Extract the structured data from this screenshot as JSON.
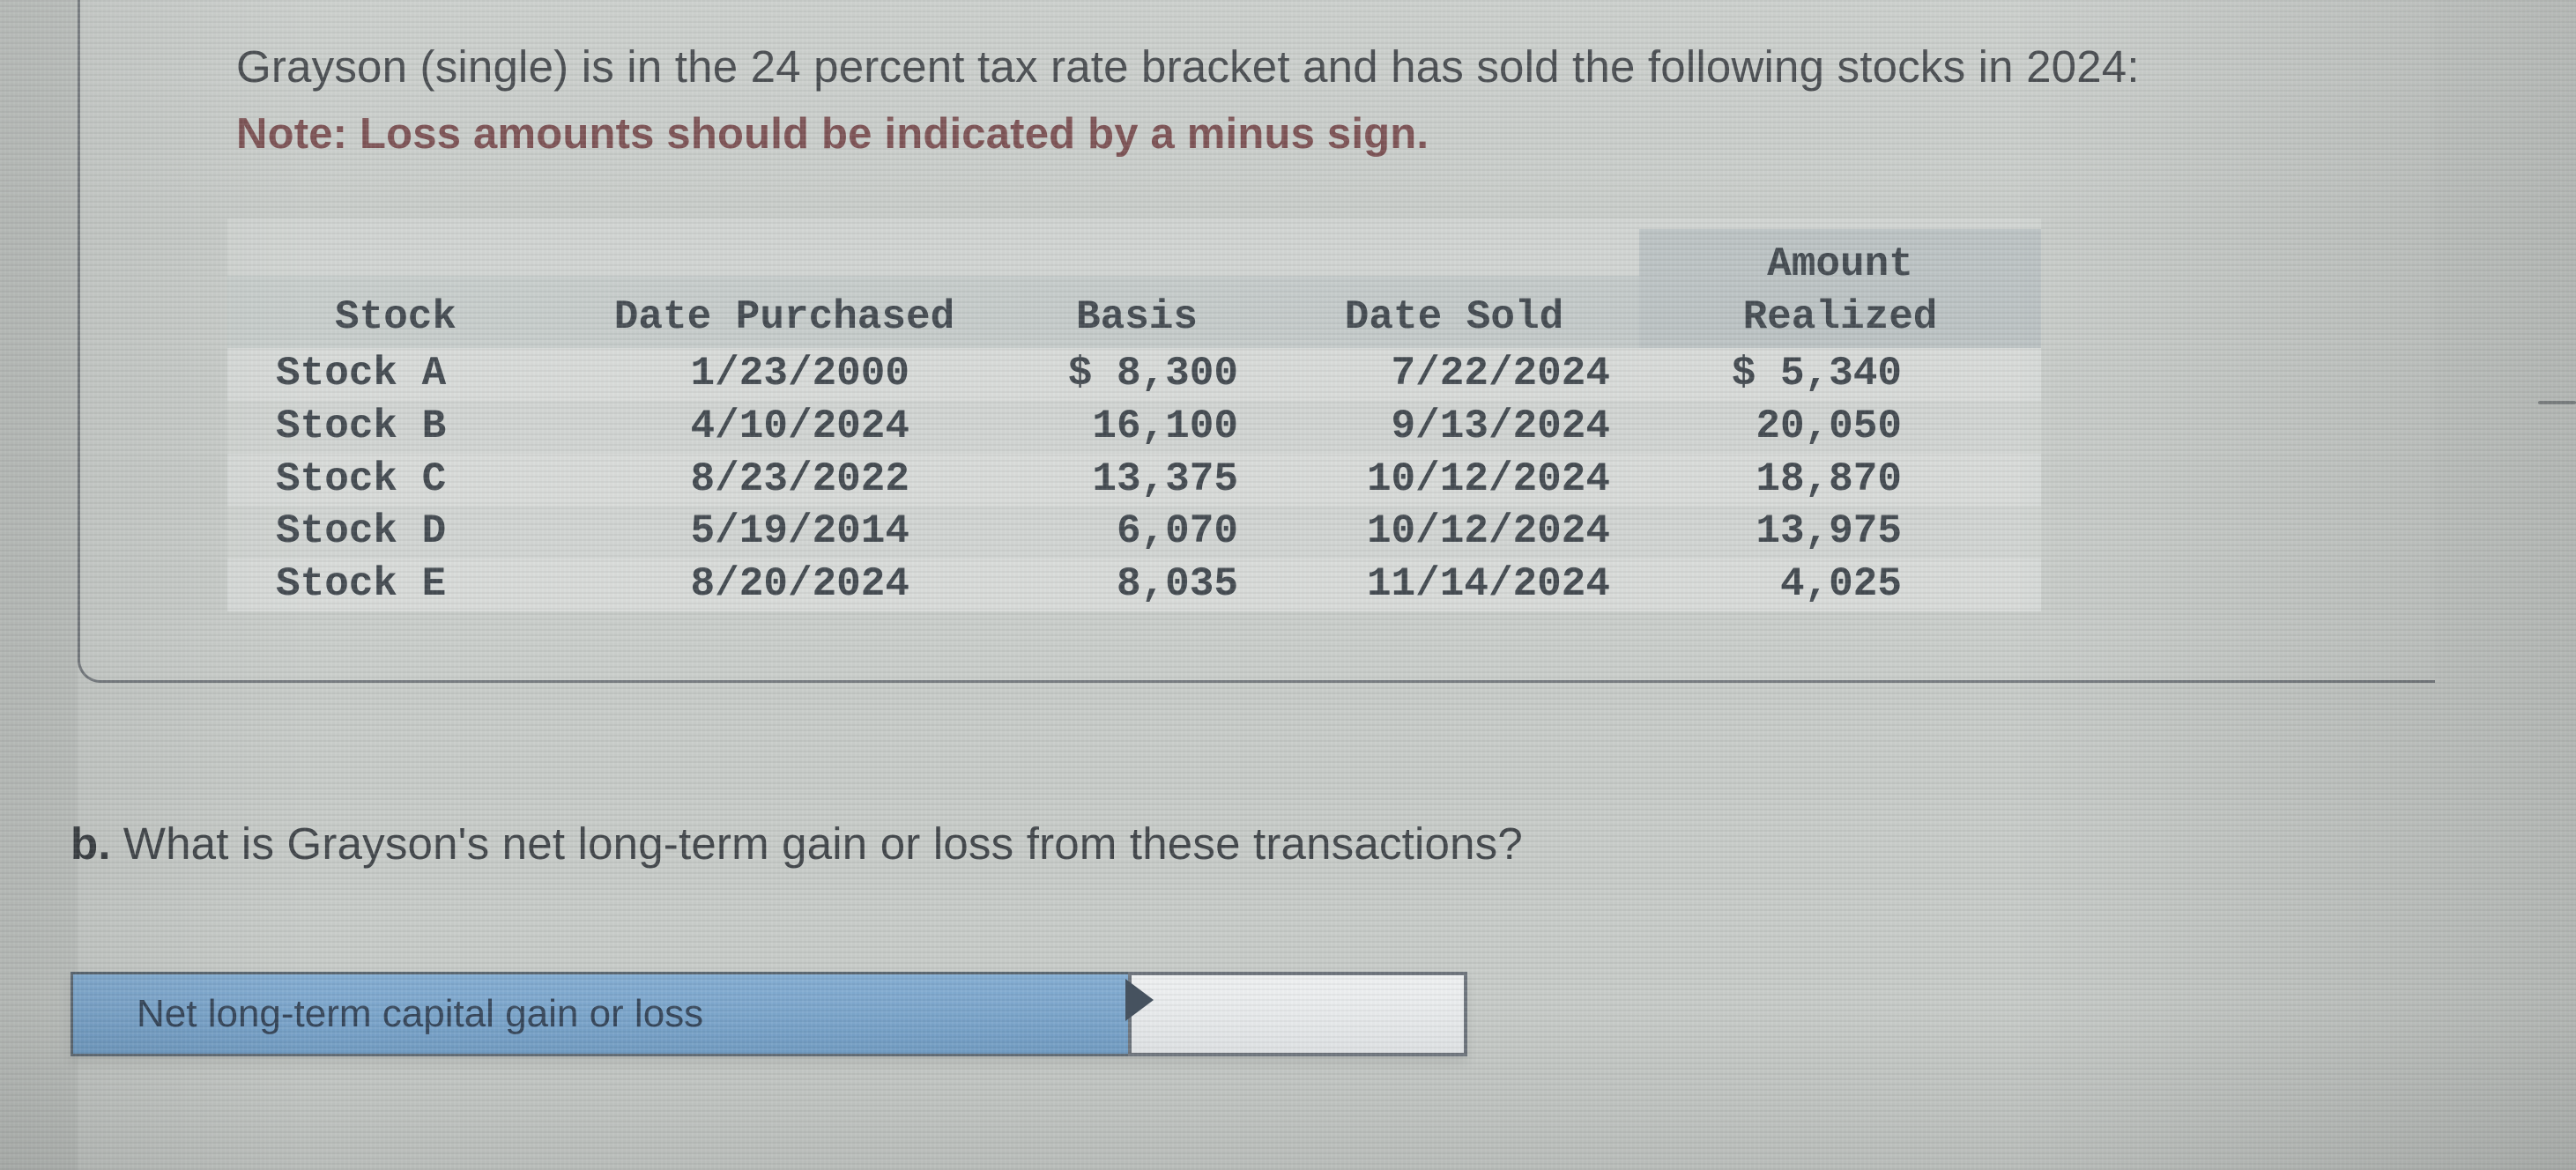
{
  "header": {
    "question": "Grayson (single) is in the 24 percent tax rate bracket and has sold the following stocks in 2024:",
    "note": "Note: Loss amounts should be indicated by a minus sign."
  },
  "stock_table": {
    "columns": [
      "Stock",
      "Date Purchased",
      "Basis",
      "Date Sold",
      "Amount Realized"
    ],
    "amount_header": {
      "line1": "Amount",
      "line2": "Realized"
    },
    "rows": [
      {
        "stock": "Stock A",
        "date_purchased": "1/23/2000",
        "basis": "$ 8,300",
        "date_sold": "7/22/2024",
        "amount_realized": "$ 5,340"
      },
      {
        "stock": "Stock B",
        "date_purchased": "4/10/2024",
        "basis": "16,100",
        "date_sold": "9/13/2024",
        "amount_realized": "20,050"
      },
      {
        "stock": "Stock C",
        "date_purchased": "8/23/2022",
        "basis": "13,375",
        "date_sold": "10/12/2024",
        "amount_realized": "18,870"
      },
      {
        "stock": "Stock D",
        "date_purchased": "5/19/2014",
        "basis": "6,070",
        "date_sold": "10/12/2024",
        "amount_realized": "13,975"
      },
      {
        "stock": "Stock E",
        "date_purchased": "8/20/2024",
        "basis": "8,035",
        "date_sold": "11/14/2024",
        "amount_realized": "4,025"
      }
    ]
  },
  "part_b": {
    "label": "b.",
    "text": "What is Grayson's net long-term gain or loss from these transactions?"
  },
  "answer_row": {
    "label": "Net long-term capital gain or loss",
    "value": ""
  },
  "colors": {
    "note_text": "#7b5153",
    "answer_bar_blue": "#7aa6cd",
    "answer_bar_text": "#36475b",
    "table_text": "#454c52",
    "page_background": "#c7cbc8"
  }
}
